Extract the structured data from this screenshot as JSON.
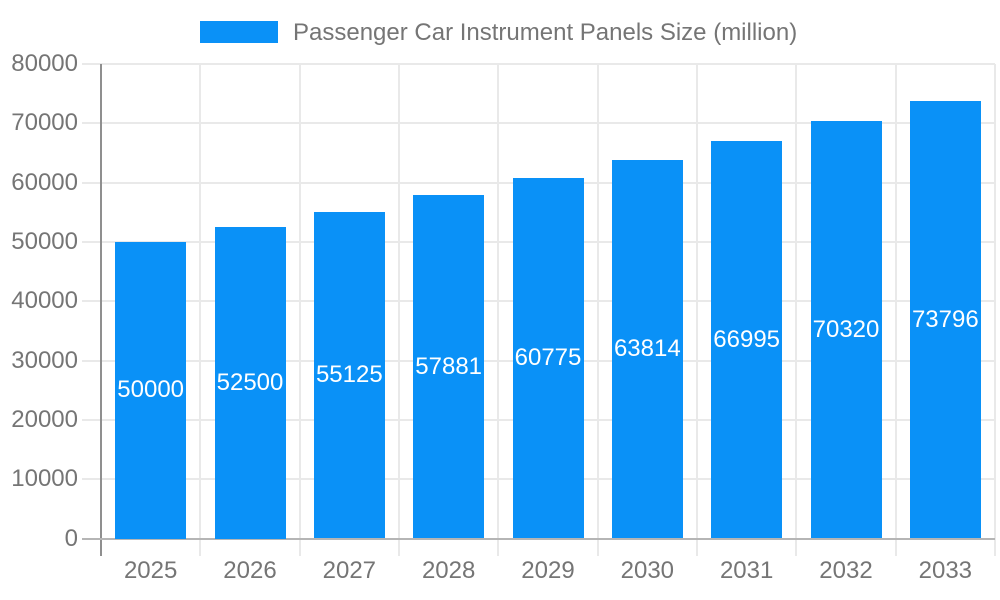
{
  "chart_data": {
    "type": "bar",
    "title": "Passenger Car Instrument Panels Size (million)",
    "categories": [
      "2025",
      "2026",
      "2027",
      "2028",
      "2029",
      "2030",
      "2031",
      "2032",
      "2033"
    ],
    "series": [
      {
        "name": "Passenger Car Instrument Panels Size (million)",
        "values": [
          50000,
          52500,
          55125,
          57881,
          60775,
          63814,
          66995,
          70320,
          73796
        ]
      }
    ],
    "xlabel": "",
    "ylabel": "",
    "ylim": [
      0,
      80000
    ],
    "ytick_step": 10000,
    "yticks": [
      0,
      10000,
      20000,
      30000,
      40000,
      50000,
      60000,
      70000,
      80000
    ],
    "grid": true,
    "legend_position": "top",
    "bar_value_labels": true,
    "colors": {
      "bar": "#0a91f7",
      "grid": "#e9e9e9",
      "axis_y": "#8f8f8f",
      "axis_x": "#b5b5b5",
      "tick_text": "#757575",
      "legend_text": "#757575",
      "bar_label_text": "#ffffff",
      "background": "#ffffff"
    }
  }
}
